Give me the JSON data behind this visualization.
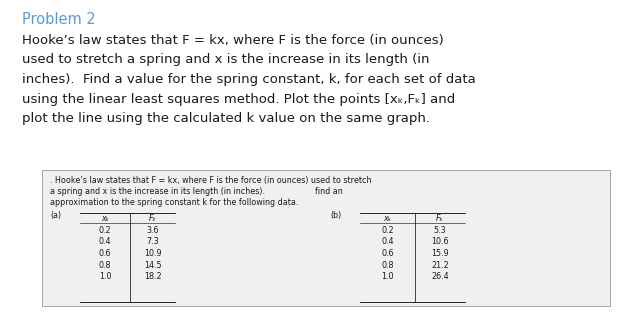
{
  "title": "Problem 2",
  "title_color": "#5b9bd5",
  "main_text_lines": [
    "Hooke’s law states that F = kx, where F is the force (in ounces)",
    "used to stretch a spring and x is the increase in its length (in",
    "inches).  Find a value for the spring constant, k, for each set of data",
    "using the linear least squares method. Plot the points [xₖ,Fₖ] and",
    "plot the line using the calculated k value on the same graph."
  ],
  "sub_text_line1": ". Hooke’s law states that F = kx, where F is the force (in ounces) used to stretch",
  "sub_text_line2": "a spring and x is the increase in its length (in inches).                    find an",
  "sub_text_line3": "approximation to the spring constant k for the following data.",
  "label_a": "(a)",
  "label_b": "(b)",
  "col_a_header": [
    "xₖ",
    "Fₖ"
  ],
  "col_b_header": [
    "xₖ",
    "Fₖ"
  ],
  "table_a": [
    [
      "0.2",
      "3.6"
    ],
    [
      "0.4",
      "7.3"
    ],
    [
      "0.6",
      "10.9"
    ],
    [
      "0.8",
      "14.5"
    ],
    [
      "1.0",
      "18.2"
    ]
  ],
  "table_b": [
    [
      "0.2",
      "5.3"
    ],
    [
      "0.4",
      "10.6"
    ],
    [
      "0.6",
      "15.9"
    ],
    [
      "0.8",
      "21.2"
    ],
    [
      "1.0",
      "26.4"
    ]
  ],
  "bg_color": "#ffffff",
  "text_color": "#1a1a1a",
  "box_color": "#f0f0f0",
  "box_edge_color": "#999999"
}
